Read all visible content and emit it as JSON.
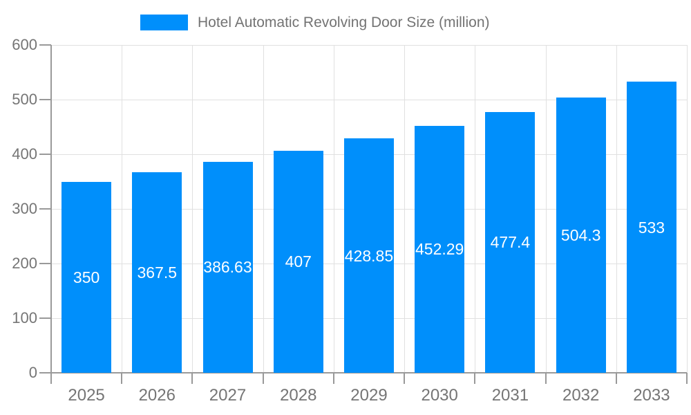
{
  "chart_data": {
    "type": "bar",
    "title": "Hotel Automatic Revolving Door Size (million)",
    "categories": [
      "2025",
      "2026",
      "2027",
      "2028",
      "2029",
      "2030",
      "2031",
      "2032",
      "2033"
    ],
    "series": [
      {
        "name": "Hotel Automatic Revolving Door Size (million)",
        "values": [
          350,
          367.5,
          386.63,
          407,
          428.85,
          452.29,
          477.4,
          504.3,
          533
        ]
      }
    ],
    "data_labels": [
      "350",
      "367.5",
      "386.63",
      "407",
      "428.85",
      "452.29",
      "477.4",
      "504.3",
      "533"
    ],
    "xlabel": "",
    "ylabel": "",
    "ylim": [
      0,
      600
    ],
    "yticks": [
      0,
      100,
      200,
      300,
      400,
      500,
      600
    ],
    "grid": true,
    "legend_position": "top-center",
    "colors": {
      "bar": "#008FFB",
      "axis": "#999999",
      "grid": "#e0e0e0",
      "tick_label": "#757575",
      "legend_label": "#737373",
      "data_label": "#ffffff",
      "background": "#ffffff"
    }
  }
}
